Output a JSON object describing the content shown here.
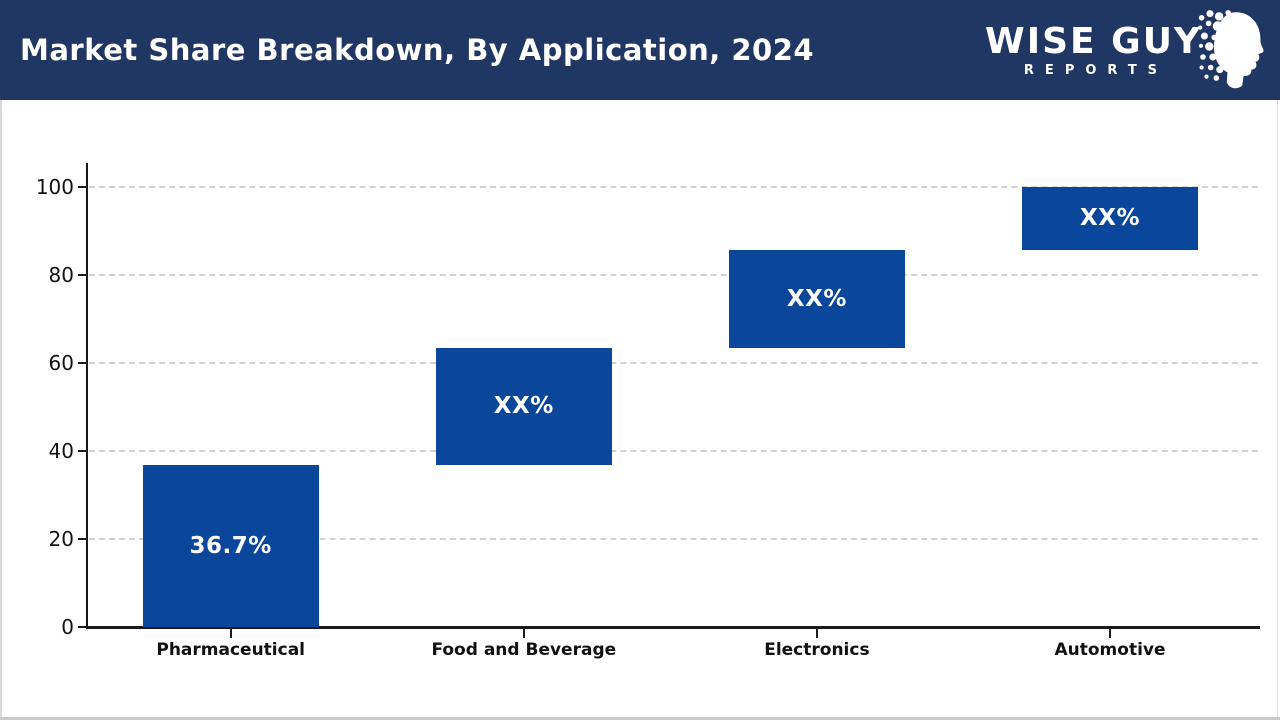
{
  "header": {
    "title": "Market Share Breakdown, By Application, 2024",
    "logo": {
      "line1": "WISE GUY",
      "line2": "REPORTS"
    }
  },
  "watermark": {
    "line1": "WISE GUY",
    "line2": "REPORTS"
  },
  "chart_data": {
    "type": "bar",
    "subtype": "waterfall",
    "title": "Market Share Breakdown, By Application, 2024",
    "categories": [
      "Pharmaceutical",
      "Food and Beverage",
      "Electronics",
      "Automotive"
    ],
    "series": [
      {
        "name": "Market share (%)",
        "segments": [
          {
            "category": "Pharmaceutical",
            "start": 0,
            "end": 36.7,
            "label": "36.7%"
          },
          {
            "category": "Food and Beverage",
            "start": 36.7,
            "end": 63.4,
            "label": "XX%"
          },
          {
            "category": "Electronics",
            "start": 63.4,
            "end": 85.7,
            "label": "XX%"
          },
          {
            "category": "Automotive",
            "start": 85.7,
            "end": 100,
            "label": "XX%"
          }
        ]
      }
    ],
    "xlabel": "",
    "ylabel": "",
    "ylim": [
      0,
      100
    ],
    "yticks": [
      0,
      20,
      40,
      60,
      80,
      100
    ],
    "grid": "horizontal-dashed",
    "legend": "none",
    "bar_color": "#0a479b",
    "bar_label_color": "#ffffff"
  },
  "colors": {
    "header_bg": "#203763",
    "bar": "#0a479b",
    "gridline": "#cfcfcf",
    "axis": "#1a1a1a",
    "watermark": "#f2f2f4",
    "title_text": "#ffffff"
  }
}
